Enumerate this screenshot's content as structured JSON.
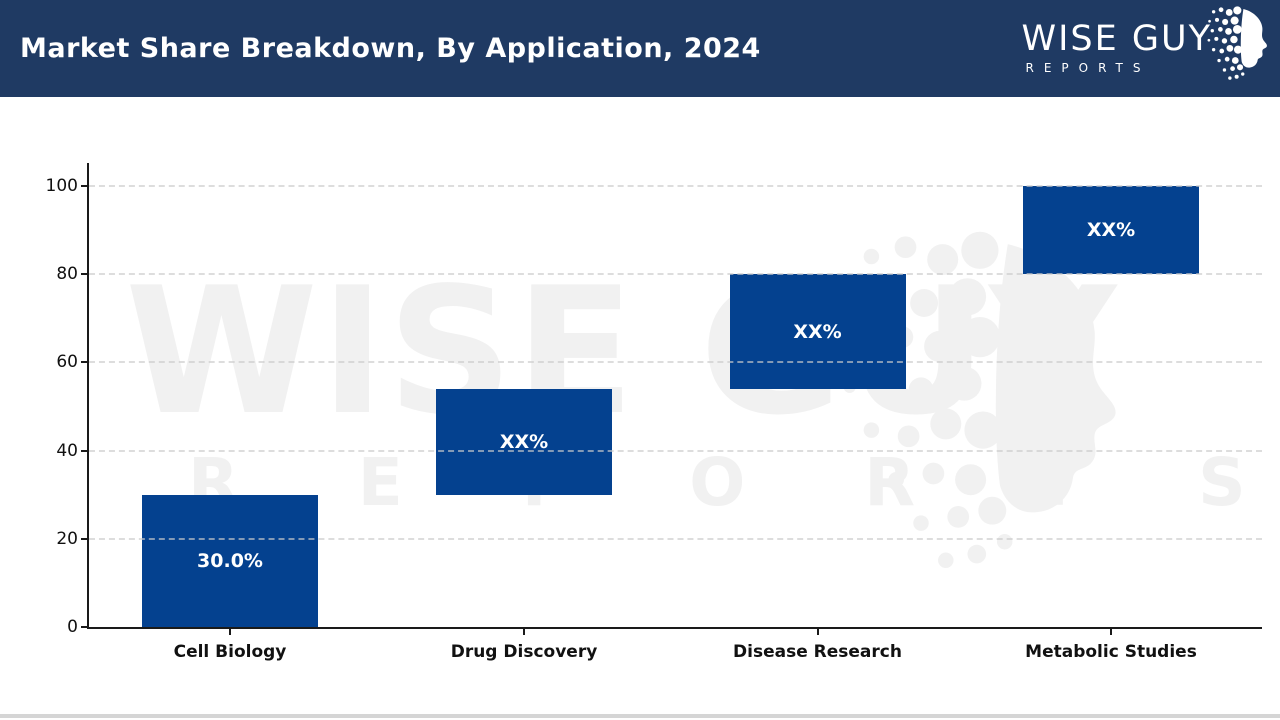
{
  "header": {
    "title": "Market Share Breakdown, By Application, 2024",
    "logo": {
      "line1": "WISE GUY",
      "line2": "REPORTS"
    },
    "bg_color": "#1f3a63"
  },
  "watermark": {
    "line1": "WISE GUY",
    "line2": "R E P O R T S"
  },
  "chart_data": {
    "type": "bar",
    "subtype": "waterfall",
    "title": "Market Share Breakdown, By Application, 2024",
    "categories": [
      "Cell Biology",
      "Drug Discovery",
      "Disease Research",
      "Metabolic Studies"
    ],
    "segments": [
      {
        "category": "Cell Biology",
        "start": 0,
        "end": 30,
        "label": "30.0%"
      },
      {
        "category": "Drug Discovery",
        "start": 30,
        "end": 54,
        "label": "XX%"
      },
      {
        "category": "Disease Research",
        "start": 54,
        "end": 80,
        "label": "XX%"
      },
      {
        "category": "Metabolic Studies",
        "start": 80,
        "end": 100,
        "label": "XX%"
      }
    ],
    "yticks": [
      0,
      20,
      40,
      60,
      80,
      100
    ],
    "ylim": [
      0,
      105
    ],
    "xlabel": "",
    "ylabel": "",
    "bar_color": "#04418f",
    "grid": true,
    "grid_style": "dashed",
    "legend": false
  }
}
